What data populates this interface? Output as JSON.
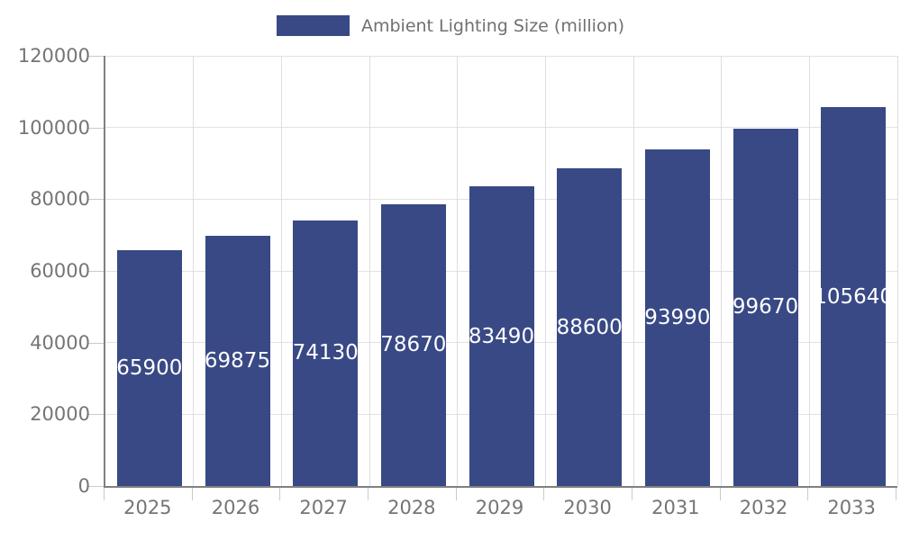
{
  "chart_data": {
    "type": "bar",
    "title": "",
    "legend_label": "Ambient Lighting Size (million)",
    "legend_position": "top-center",
    "categories": [
      "2025",
      "2026",
      "2027",
      "2028",
      "2029",
      "2030",
      "2031",
      "2032",
      "2033"
    ],
    "values": [
      65900,
      69875,
      74130,
      78670,
      83490,
      88600,
      93990,
      99670,
      105640
    ],
    "value_labels": [
      "65900",
      "69875",
      "74130",
      "78670",
      "83490",
      "88600",
      "93990",
      "99670",
      "105640"
    ],
    "xlabel": "",
    "ylabel": "",
    "ylim": [
      0,
      120000
    ],
    "yticks": [
      0,
      20000,
      40000,
      60000,
      80000,
      100000,
      120000
    ],
    "ytick_labels": [
      "0",
      "20000",
      "40000",
      "60000",
      "80000",
      "100000",
      "120000"
    ],
    "grid": true,
    "colors": {
      "bar": "#394985",
      "value_label": "#ffffff",
      "axis_text": "#757575",
      "legend_text": "#707070",
      "spine": "#808080",
      "hgrid": "#e2e2e2",
      "vgrid": "#dddde3",
      "tick": "#c9c9d2"
    }
  }
}
